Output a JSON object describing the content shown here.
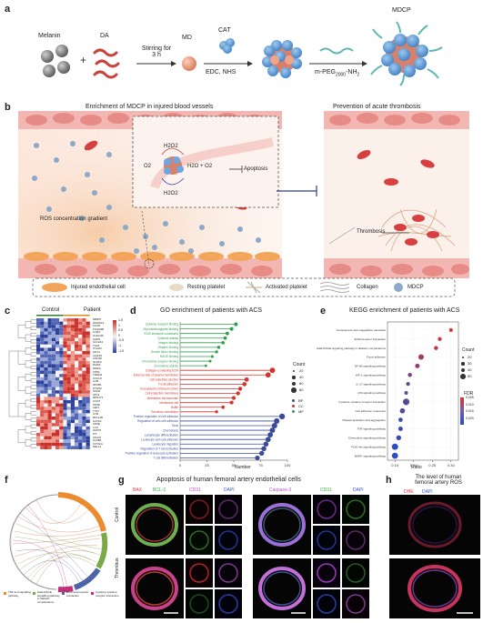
{
  "panel_a": {
    "label": "a",
    "melanin": "Melanin",
    "da": "DA",
    "stir": "Stirring for",
    "stir_time": "3 h",
    "md": "MD",
    "cat": "CAT",
    "edc": "EDC, NHS",
    "peg": "m-PEG",
    "peg_sub": "2000",
    "peg_suffix": "-NH",
    "peg_sub2": "2",
    "mdcp": "MDCP"
  },
  "panel_b": {
    "label": "b",
    "title_left": "Enrichment of MDCP in injured blood vessels",
    "title_right": "Prevention of acute thrombosis",
    "h2o2_top": "H2O2",
    "h2o2_bottom": "H2O2",
    "o2": "O2",
    "h2o_o2": "H2O + O2",
    "apoptosis": "Apoptosis",
    "ros": "ROS concentration gradient",
    "thrombosis": "Thrombosis",
    "legend": [
      "Injured endothelial cell",
      "Resting platelet",
      "Activated platelet",
      "Collagen",
      "MDCP"
    ]
  },
  "panel_c": {
    "label": "c",
    "control": "Control",
    "patient": "Patient",
    "genes": [
      "MMP9",
      "S100A12",
      "FCAR",
      "FCGR3B",
      "IL1R2",
      "CLEC4D",
      "AQP9",
      "SLC2A3",
      "TLR2",
      "ITGAM",
      "CD14",
      "LILRA5",
      "CSF3R",
      "NLRP3",
      "PADI4",
      "MNDA",
      "FPR1",
      "TREM1",
      "CXCL8",
      "IL1B",
      "NFKB1",
      "PTGS2",
      "SOD2",
      "ATF3",
      "RPS4Y1",
      "CCR7",
      "CD28",
      "LEF1",
      "TCF7",
      "IL7R",
      "BCL11B",
      "GATA3",
      "CD3E",
      "LCK",
      "ZAP70",
      "ITK",
      "CD247",
      "KLRB1",
      "FLT3LG",
      "NELL2"
    ],
    "scale": [
      "1.5",
      "1",
      "0.5",
      "0",
      "-0.5",
      "-1",
      "-1.5"
    ]
  },
  "panel_d": {
    "label": "d",
    "title": "GO enrichment of patients with ACS",
    "xlabel": "Number",
    "count_title": "Count",
    "count_levels": [
      "20",
      "40",
      "60",
      "80"
    ],
    "category_legend": [
      "BP",
      "CC",
      "MF"
    ]
  },
  "panel_e": {
    "label": "e",
    "title": "KEGG enrichment of patients with ACS",
    "xlabel": "Ratio",
    "count_title": "Count",
    "count_levels": [
      "20",
      "30",
      "40",
      "50"
    ],
    "fdr_title": "FDR",
    "fdr_levels": [
      "0.005",
      "0.010",
      "0.015",
      "0.020"
    ]
  },
  "panel_f": {
    "label": "f",
    "legend": [
      "TNF and signalling pathway",
      "AGE-RAGE signalling pathway in diabetic complications",
      "ECM and receptor interaction",
      "Cytokine-cytokine receptor interaction"
    ]
  },
  "panel_g": {
    "label": "g",
    "title": "Apoptosis of human femoral artery endothelial cells",
    "channels_left": [
      "BAX",
      "BCL-2",
      "CD31",
      "DAPI"
    ],
    "channels_right": [
      "Caspase-3",
      "CD31",
      "DAPI"
    ],
    "rows": [
      "Control",
      "Thrombus"
    ]
  },
  "panel_h": {
    "label": "h",
    "title_line1": "The level of human",
    "title_line2": "femoral artery ROS",
    "channels": [
      "DHE",
      "DAPI"
    ]
  },
  "chart_data": [
    {
      "type": "bar",
      "title": "GO enrichment of patients with ACS",
      "xlabel": "Number",
      "xlim": [
        0,
        100
      ],
      "categories": [
        "Cytokine receptor binding",
        "Glycosaminoglycan binding",
        "ECM structural constituent",
        "Cytokine activity",
        "Integrin binding",
        "Heparin binding",
        "Growth factor binding",
        "RAGE binding",
        "Chemokine receptor binding",
        "Chemokine activity",
        "Collagen-containing ECM",
        "External side of plasma membrane",
        "Cell-substrate junction",
        "Focal adhesion",
        "Endoplasmic reticulum lumen",
        "Cell projection membrane",
        "Membrane microdomain",
        "Membrane raft",
        "Ruffle",
        "Secretory membrane",
        "Positive regulation of cell adhesion",
        "Regulation of cell–cell adhesion",
        "Taxis",
        "Chemotaxis",
        "Lymphocyte differentiation",
        "Leukocyte cell–cell adhesion",
        "Leukocyte migration",
        "Regulation of T cell activation",
        "Positive regulation of leukocyte activation",
        "T cell differentiation"
      ],
      "groups": [
        "MF",
        "MF",
        "MF",
        "MF",
        "MF",
        "MF",
        "MF",
        "MF",
        "MF",
        "MF",
        "CC",
        "CC",
        "CC",
        "CC",
        "CC",
        "CC",
        "CC",
        "CC",
        "CC",
        "CC",
        "BP",
        "BP",
        "BP",
        "BP",
        "BP",
        "BP",
        "BP",
        "BP",
        "BP",
        "BP"
      ],
      "values": [
        52,
        48,
        44,
        42,
        40,
        36,
        34,
        30,
        28,
        24,
        86,
        82,
        62,
        60,
        56,
        54,
        50,
        48,
        40,
        34,
        95,
        90,
        88,
        86,
        84,
        82,
        80,
        78,
        76,
        72
      ]
    },
    {
      "type": "scatter",
      "title": "KEGG enrichment of patients with ACS",
      "xlabel": "Ratio",
      "xlim": [
        0.13,
        0.32
      ],
      "categories": [
        "Complement and coagulation cascades",
        "ECM-receptor interaction",
        "AGE-RAGE signaling pathway in diabetic complications",
        "Focal adhesion",
        "NF-kB signaling pathway",
        "HIF-1 signaling pathway",
        "IL-17 signaling pathway",
        "p53 signaling pathway",
        "Cytokine-cytokine receptor interaction",
        "Cell adhesion molecules",
        "Platelet activation and aggregation",
        "TNF signaling pathway",
        "Chemokine signaling pathway",
        "PI3K-Akt signaling pathway",
        "MAPK signaling pathway"
      ],
      "x": [
        0.3,
        0.27,
        0.26,
        0.22,
        0.21,
        0.19,
        0.185,
        0.18,
        0.18,
        0.17,
        0.165,
        0.165,
        0.16,
        0.15,
        0.15
      ],
      "count": [
        22,
        24,
        26,
        40,
        30,
        26,
        24,
        22,
        50,
        36,
        28,
        30,
        34,
        48,
        46
      ],
      "fdr": [
        0.002,
        0.004,
        0.004,
        0.008,
        0.01,
        0.012,
        0.014,
        0.014,
        0.016,
        0.016,
        0.018,
        0.018,
        0.018,
        0.02,
        0.02
      ]
    }
  ]
}
